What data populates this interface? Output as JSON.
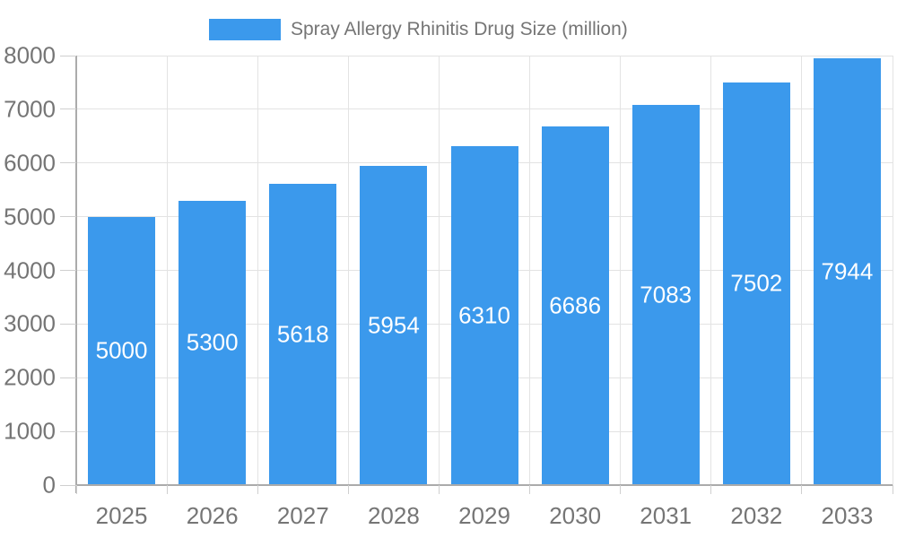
{
  "chart_data": {
    "type": "bar",
    "title": "",
    "legend": "Spray Allergy Rhinitis Drug Size (million)",
    "legend_position": "top-center",
    "categories": [
      "2025",
      "2026",
      "2027",
      "2028",
      "2029",
      "2030",
      "2031",
      "2032",
      "2033"
    ],
    "values": [
      5000,
      5300,
      5618,
      5954,
      6310,
      6686,
      7083,
      7502,
      7944
    ],
    "value_labels": [
      "5000",
      "5300",
      "5618",
      "5954",
      "6310",
      "6686",
      "7083",
      "7502",
      "7944"
    ],
    "xlabel": "",
    "ylabel": "",
    "ylim": [
      0,
      8000
    ],
    "ytick_step": 1000,
    "ytick_labels": [
      "0",
      "1000",
      "2000",
      "3000",
      "4000",
      "5000",
      "6000",
      "7000",
      "8000"
    ],
    "grid": true,
    "colors": {
      "bar": "#3B99EC",
      "grid": "#e3e3e3",
      "axis": "#ababab",
      "tick": "#cfcfcf",
      "axis_label": "#757575",
      "legend_text": "#757575",
      "value_label": "#ffffff",
      "background": "#ffffff"
    }
  }
}
